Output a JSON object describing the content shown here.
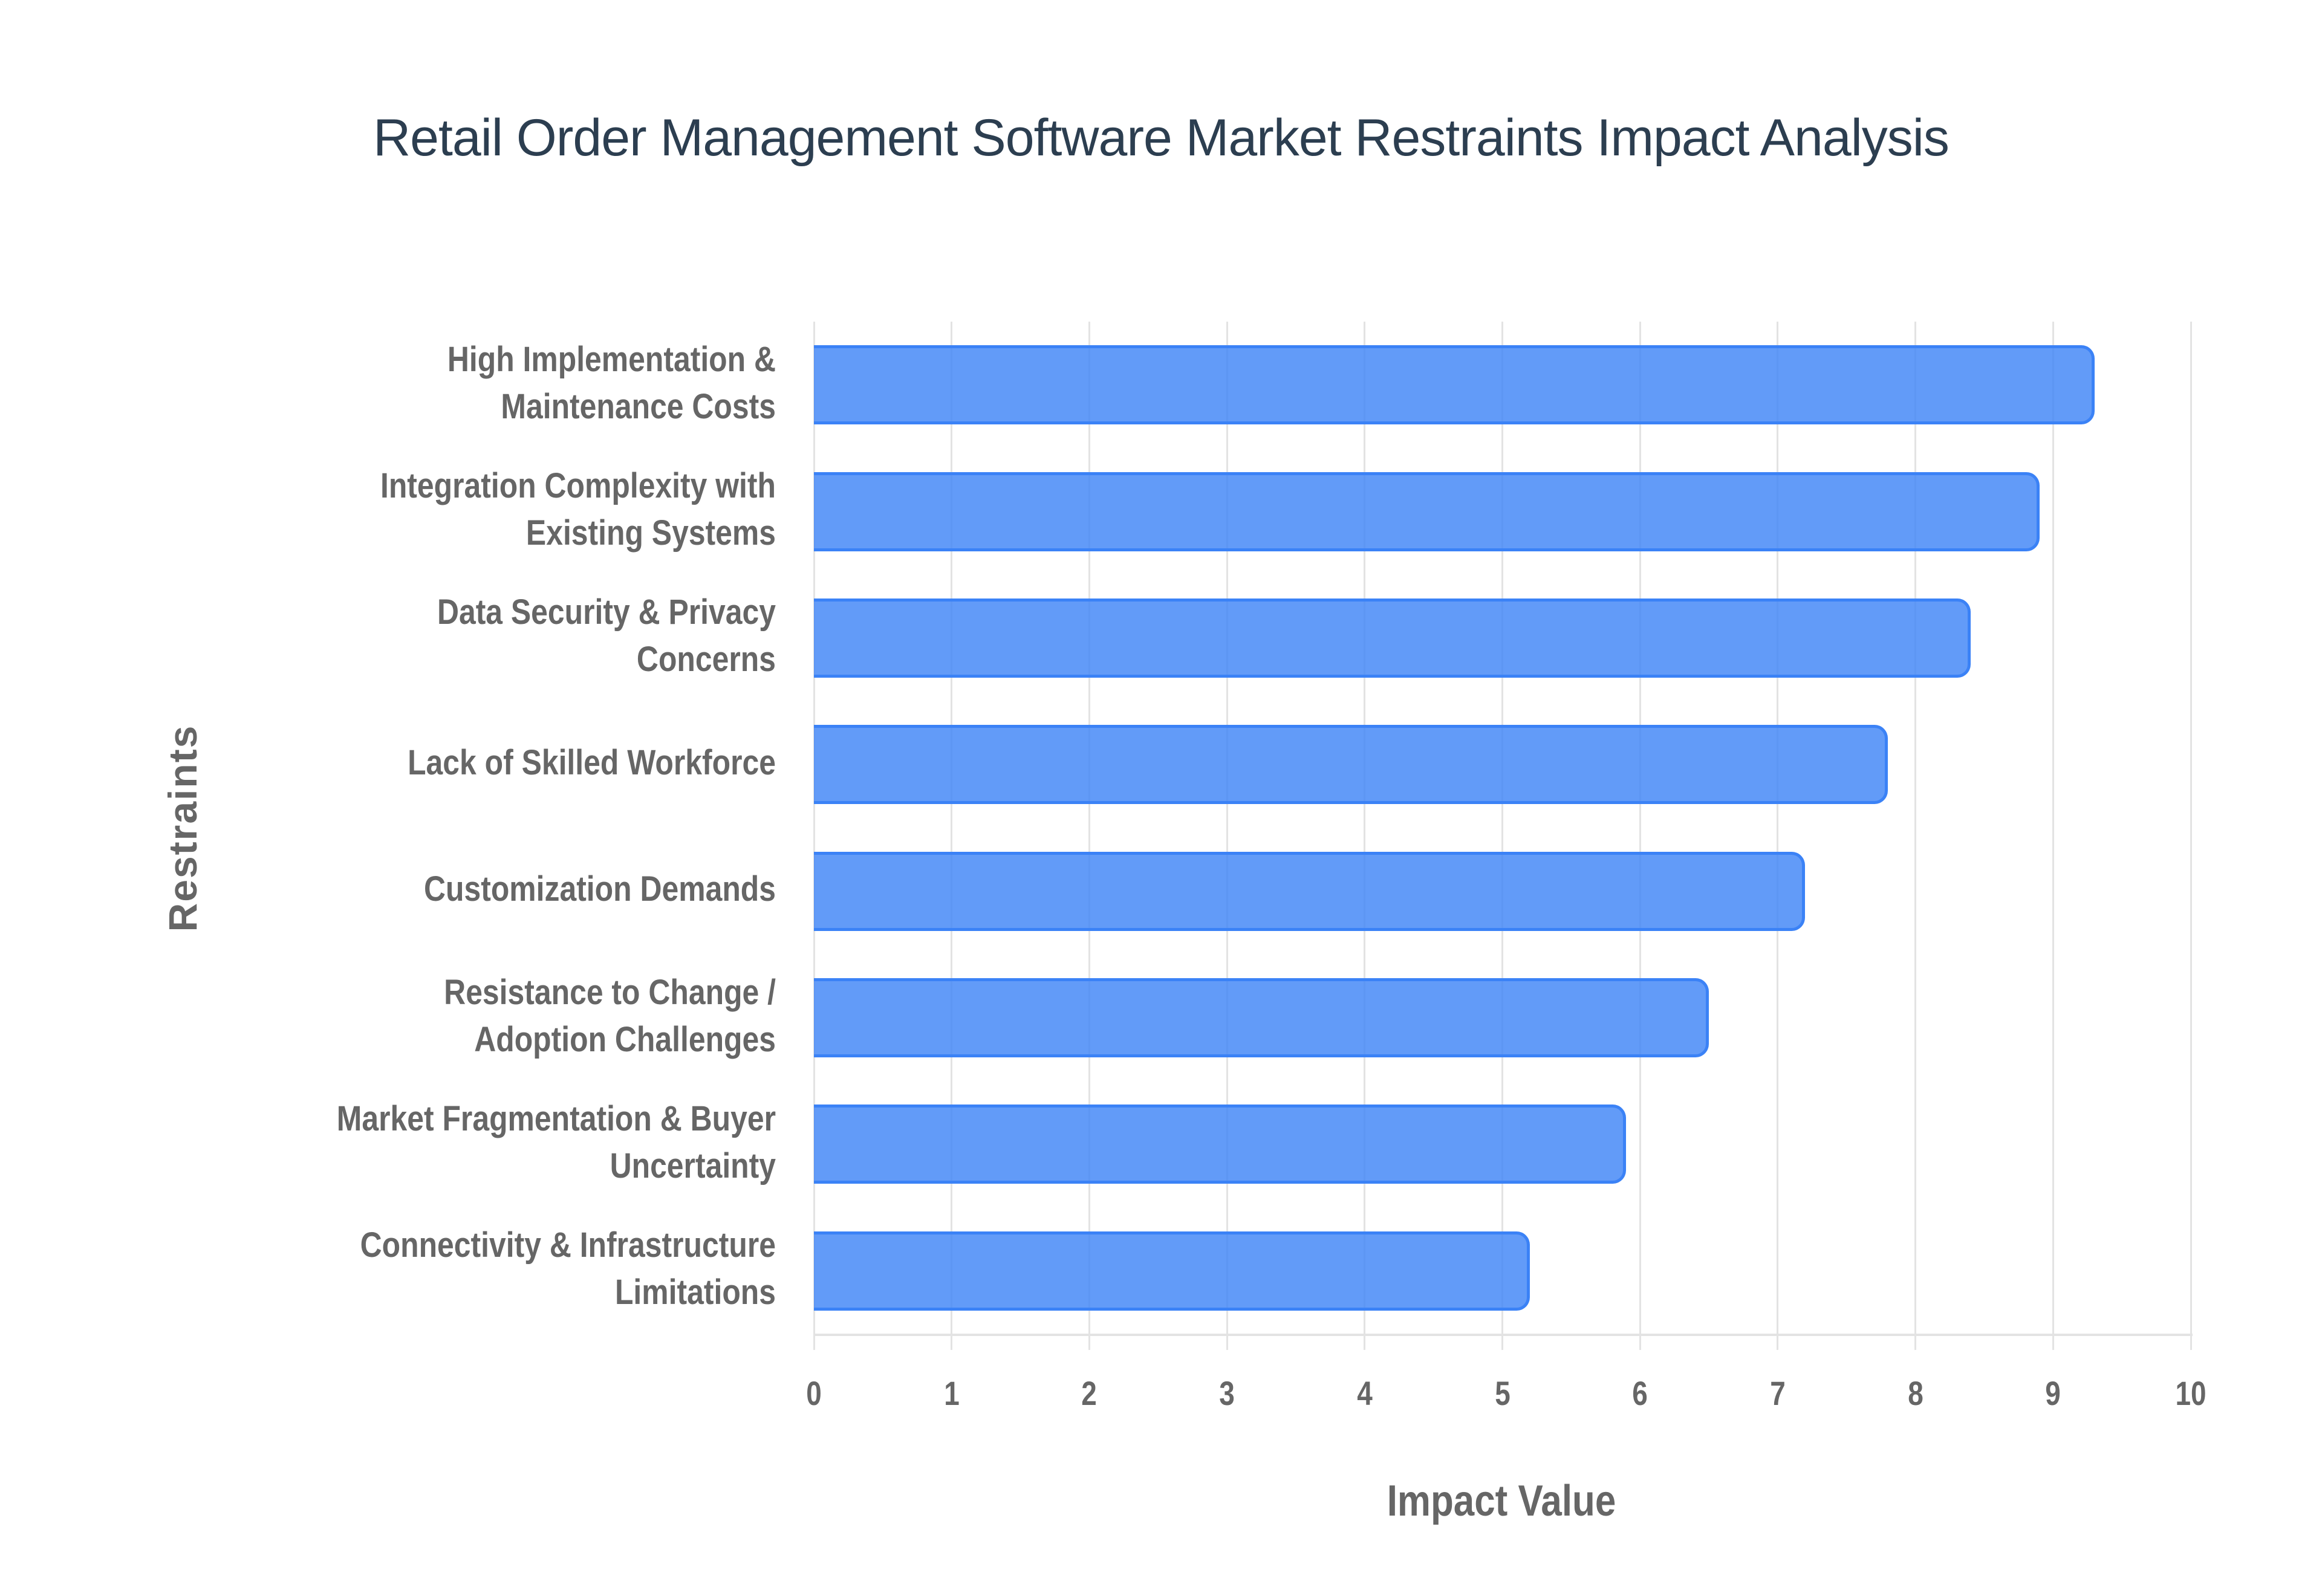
{
  "title": "Retail Order Management Software Market Restraints Impact Analysis",
  "colors": {
    "title": "#2c3e50",
    "bar_fill": "#6399f5",
    "bar_border": "#3b82f6",
    "axis_text": "#666666",
    "gridline": "#e3e3e3",
    "background": "#ffffff"
  },
  "axes": {
    "x_title": "Impact Value",
    "y_title": "Restraints",
    "x_ticks": [
      "0",
      "1",
      "2",
      "3",
      "4",
      "5",
      "6",
      "7",
      "8",
      "9",
      "10"
    ]
  },
  "categories": [
    {
      "lines": [
        "High Implementation &",
        "Maintenance Costs"
      ],
      "value": 9.3
    },
    {
      "lines": [
        "Integration Complexity with",
        "Existing Systems"
      ],
      "value": 8.9
    },
    {
      "lines": [
        "Data Security & Privacy",
        "Concerns"
      ],
      "value": 8.4
    },
    {
      "lines": [
        "Lack of Skilled Workforce"
      ],
      "value": 7.8
    },
    {
      "lines": [
        "Customization Demands"
      ],
      "value": 7.2
    },
    {
      "lines": [
        "Resistance to Change /",
        "Adoption Challenges"
      ],
      "value": 6.5
    },
    {
      "lines": [
        "Market Fragmentation & Buyer",
        "Uncertainty"
      ],
      "value": 5.9
    },
    {
      "lines": [
        "Connectivity & Infrastructure",
        "Limitations"
      ],
      "value": 5.2
    }
  ],
  "chart_data": {
    "type": "bar",
    "orientation": "horizontal",
    "title": "Retail Order Management Software Market Restraints Impact Analysis",
    "xlabel": "Impact Value",
    "ylabel": "Restraints",
    "categories": [
      "High Implementation & Maintenance Costs",
      "Integration Complexity with Existing Systems",
      "Data Security & Privacy Concerns",
      "Lack of Skilled Workforce",
      "Customization Demands",
      "Resistance to Change / Adoption Challenges",
      "Market Fragmentation & Buyer Uncertainty",
      "Connectivity & Infrastructure Limitations"
    ],
    "values": [
      9.3,
      8.9,
      8.4,
      7.8,
      7.2,
      6.5,
      5.9,
      5.2
    ],
    "xlim": [
      0,
      10
    ],
    "x_ticks": [
      0,
      1,
      2,
      3,
      4,
      5,
      6,
      7,
      8,
      9,
      10
    ],
    "grid": {
      "vertical": true,
      "horizontal": false
    },
    "legend": null
  }
}
